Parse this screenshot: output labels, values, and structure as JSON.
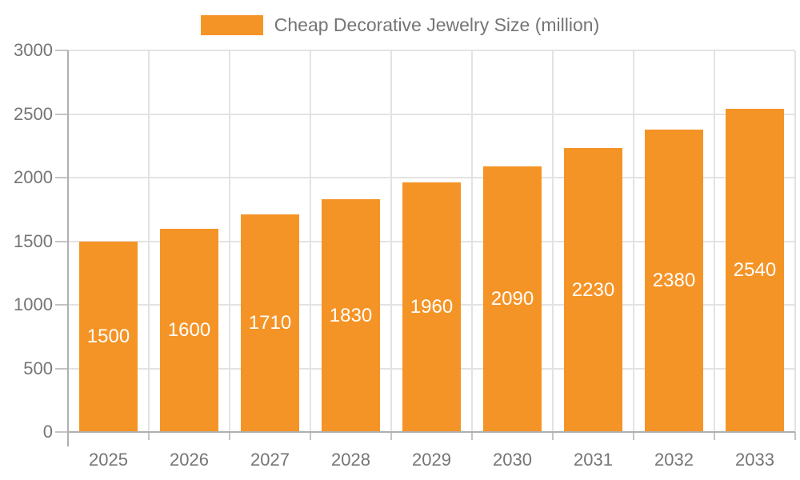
{
  "legend": {
    "label": "Cheap Decorative Jewelry Size (million)"
  },
  "chart_data": {
    "type": "bar",
    "title": "Cheap Decorative Jewelry Size (million)",
    "series_name": "Cheap Decorative Jewelry Size (million)",
    "categories": [
      "2025",
      "2026",
      "2027",
      "2028",
      "2029",
      "2030",
      "2031",
      "2032",
      "2033"
    ],
    "values": [
      1500,
      1600,
      1710,
      1830,
      1960,
      2090,
      2230,
      2380,
      2540
    ],
    "bar_labels": [
      "1500",
      "1600",
      "1710",
      "1830",
      "1960",
      "2090",
      "2230",
      "2380",
      "2540"
    ],
    "xlabel": "",
    "ylabel": "",
    "ylim": [
      0,
      3000
    ],
    "yticks": [
      0,
      500,
      1000,
      1500,
      2000,
      2500,
      3000
    ],
    "grid": true,
    "legend_position": "top",
    "colors": {
      "bar": "#F59426",
      "bar_label": "#FFFFFF",
      "axis_text": "#757575",
      "gridline": "#E3E3E3",
      "axis_line": "#AFAFAF",
      "tick": "#C4C4C4",
      "background": "#FFFFFF"
    }
  }
}
